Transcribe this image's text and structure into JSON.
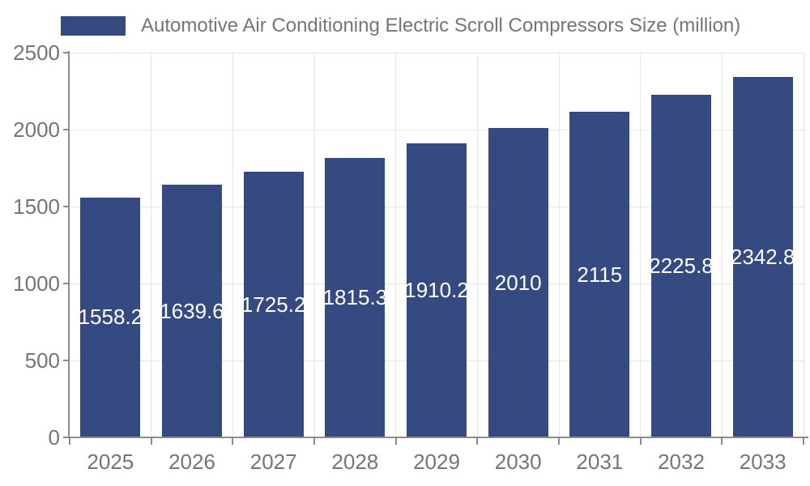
{
  "chart_data": {
    "type": "bar",
    "title": "Automotive Air Conditioning Electric Scroll Compressors Size (million)",
    "legend": [
      "Automotive Air Conditioning Electric Scroll Compressors Size (million)"
    ],
    "legend_position": "top-left",
    "categories": [
      "2025",
      "2026",
      "2027",
      "2028",
      "2029",
      "2030",
      "2031",
      "2032",
      "2033"
    ],
    "values": [
      1558.2,
      1639.6,
      1725.2,
      1815.3,
      1910.2,
      2010,
      2115,
      2225.8,
      2342.8
    ],
    "xlabel": "",
    "ylabel": "",
    "ylim": [
      0,
      2500
    ],
    "yticks": [
      0,
      500,
      1000,
      1500,
      2000,
      2500
    ],
    "grid": true,
    "colors": {
      "bar": "#364a82",
      "bar_label": "#ffffff",
      "axis_line": "#8c8c8c",
      "grid_line": "#e6e6e6",
      "plot_border": "#e0e0e0",
      "tick_label": "#757575",
      "legend_text": "#757575",
      "background": "#ffffff"
    }
  }
}
